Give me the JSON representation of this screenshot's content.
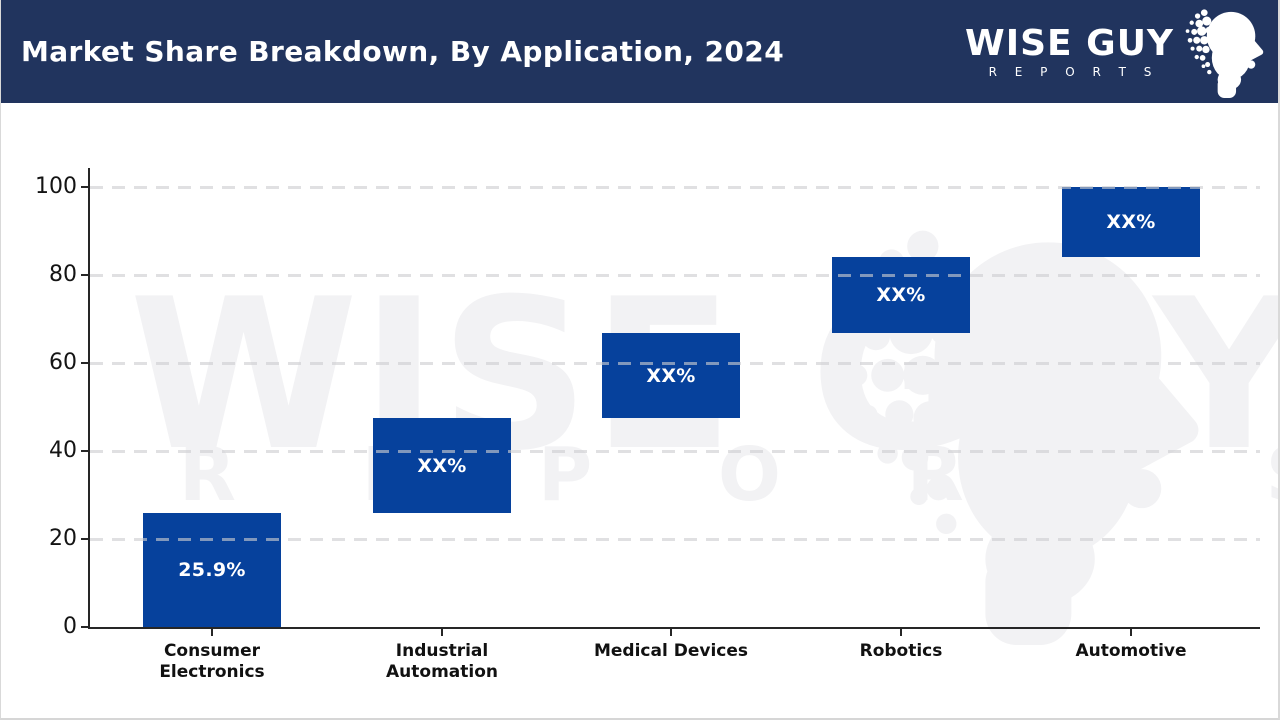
{
  "header": {
    "title": "Market Share Breakdown, By Application, 2024",
    "bg_color": "#21345e",
    "logo": {
      "name": "WISE GUY",
      "sub": "R E P O R T S"
    }
  },
  "watermark": {
    "line1": "WISE GUY",
    "line2": "R E P O R T S"
  },
  "chart_data": {
    "type": "bar",
    "subtype": "waterfall",
    "title": "Market Share Breakdown, By Application, 2024",
    "categories": [
      "Consumer\nElectronics",
      "Industrial\nAutomation",
      "Medical Devices",
      "Robotics",
      "Automotive"
    ],
    "segments": [
      {
        "category": "Consumer Electronics",
        "start": 0,
        "end": 25.9,
        "label": "25.9%"
      },
      {
        "category": "Industrial Automation",
        "start": 25.9,
        "end": 47.4,
        "label": "XX%"
      },
      {
        "category": "Medical Devices",
        "start": 47.4,
        "end": 66.9,
        "label": "XX%"
      },
      {
        "category": "Robotics",
        "start": 66.9,
        "end": 84.0,
        "label": "XX%"
      },
      {
        "category": "Automotive",
        "start": 84.0,
        "end": 100.0,
        "label": "XX%"
      }
    ],
    "yticks": [
      0,
      20,
      40,
      60,
      80,
      100
    ],
    "ylim": [
      0,
      104
    ],
    "xlabel": "",
    "ylabel": "",
    "grid": "horizontal dashed, drawn over bars",
    "legend": "none",
    "bar_color": "#06419c",
    "bar_label_color": "#ffffff",
    "axis_color": "#262626"
  }
}
